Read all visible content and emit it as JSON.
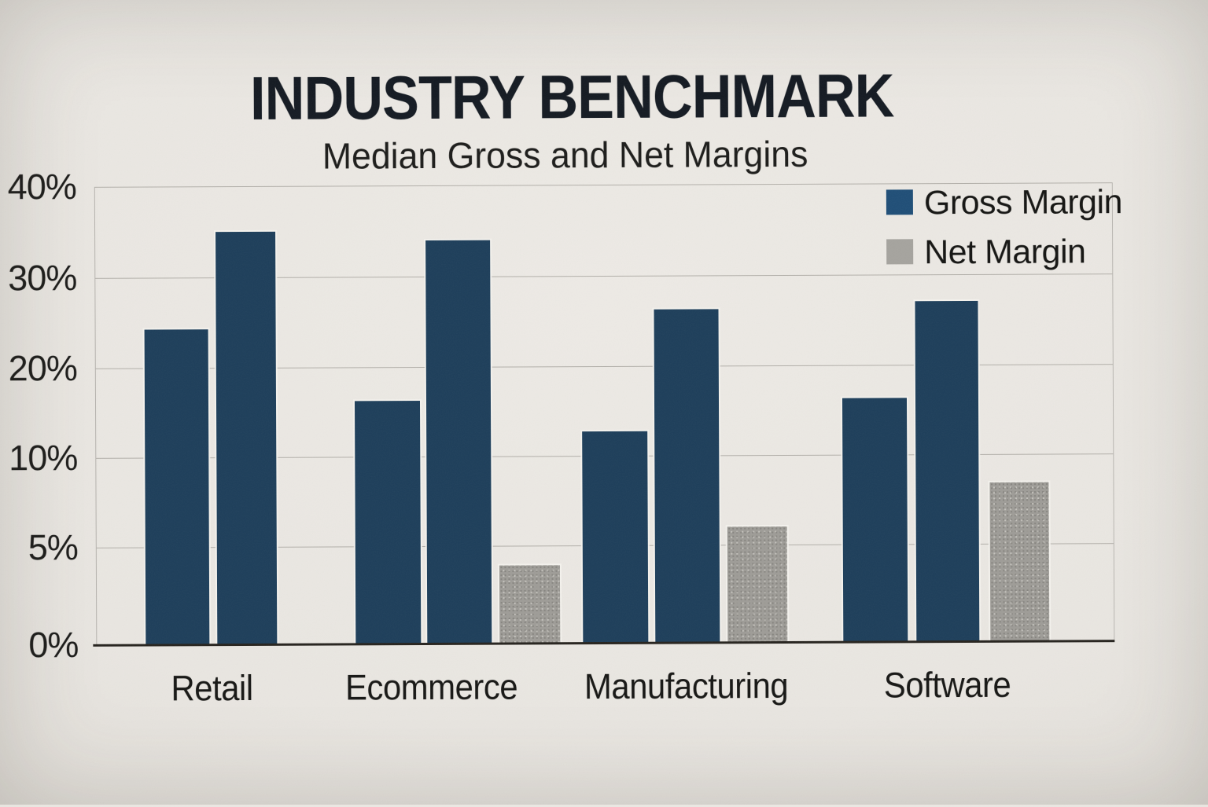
{
  "image_type": "photograph of a printed bar chart",
  "title": "INDUSTRY BENCHMARK",
  "subtitle": "Median Gross and Net Margins",
  "legend": {
    "items": [
      {
        "label": "Gross Margin",
        "color": "#1f4e77",
        "series_role": "gross"
      },
      {
        "label": "Net Margin",
        "color": "#a5a39e",
        "series_role": "net"
      }
    ],
    "position": "top-right"
  },
  "y_axis": {
    "tick_labels": [
      "40%",
      "30%",
      "20%",
      "10%",
      "5%",
      "0%"
    ],
    "tick_values": [
      40,
      30,
      20,
      10,
      5,
      0
    ],
    "note": "tick rows are evenly spaced on the print even though the value steps differ (10,10,10,5,5)"
  },
  "x_axis": {
    "categories": [
      "Retail",
      "Ecommerce",
      "Manufacturing",
      "Software"
    ]
  },
  "chart_data": {
    "type": "bar",
    "title": "INDUSTRY BENCHMARK",
    "subtitle": "Median Gross and Net Margins",
    "categories": [
      "Retail",
      "Ecommerce",
      "Manufacturing",
      "Software"
    ],
    "series": [
      {
        "name": "Gross Margin",
        "role": "gross",
        "bar": "left",
        "color": "#1d3e5a",
        "values": [
          24.3,
          16.2,
          12.7,
          16.3
        ]
      },
      {
        "name": "Gross Margin",
        "role": "gross",
        "bar": "right",
        "color": "#1d3e5a",
        "values": [
          35.0,
          34.0,
          26.3,
          27.0
        ]
      },
      {
        "name": "Net Margin",
        "role": "net",
        "bar": "single",
        "color": "#9e9c97",
        "values": [
          null,
          4.0,
          6.0,
          8.4
        ]
      }
    ],
    "y_tick_values": [
      40,
      30,
      20,
      10,
      5,
      0
    ],
    "y_tick_labels": [
      "40%",
      "30%",
      "20%",
      "10%",
      "5%",
      "0%"
    ],
    "ylim": [
      0,
      40
    ],
    "grid": true,
    "legend_position": "top-right",
    "notes": "Each category shows two dark-blue Gross Margin bars; Retail has no gray Net Margin bar."
  },
  "colors": {
    "paper": "#e9e6e1",
    "gross_bar": "#1d3e5a",
    "net_bar": "#9e9c97",
    "gridline": "#b2afa9",
    "axis_line": "#26231e",
    "text": "#161614"
  }
}
